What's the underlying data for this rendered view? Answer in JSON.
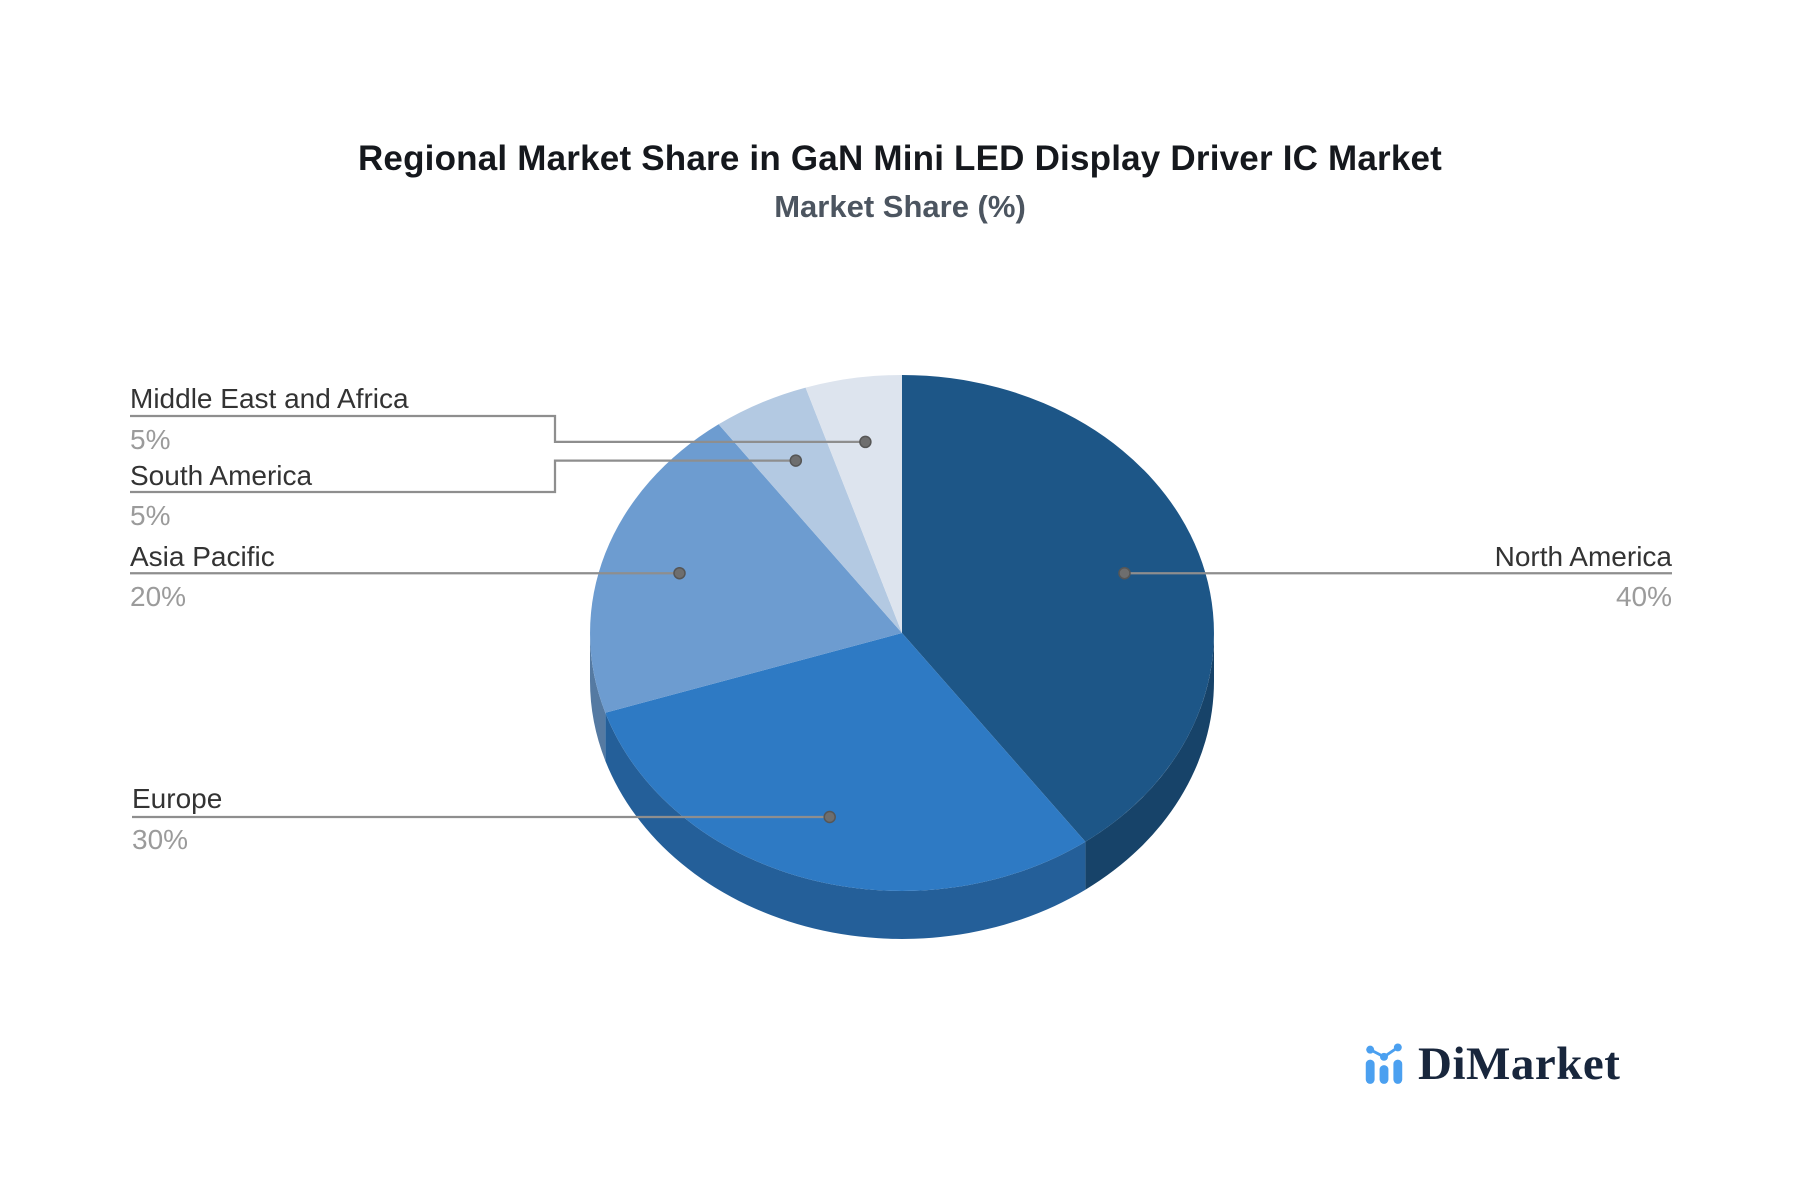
{
  "chart_data": {
    "type": "pie",
    "title": "Regional Market Share in GaN Mini LED Display Driver IC Market",
    "subtitle": "Market Share (%)",
    "unit": "%",
    "effect_3d": true,
    "start_angle_deg": 0,
    "direction": "clockwise",
    "legend_position": "none",
    "label_style": "callout",
    "slices": [
      {
        "label": "North America",
        "value": 40,
        "display": "40%",
        "color": "#1d5687"
      },
      {
        "label": "Europe",
        "value": 30,
        "display": "30%",
        "color": "#2e7ac4"
      },
      {
        "label": "Asia Pacific",
        "value": 20,
        "display": "20%",
        "color": "#6d9cd0"
      },
      {
        "label": "South America",
        "value": 5,
        "display": "5%",
        "color": "#b3c9e2"
      },
      {
        "label": "Middle East and Africa",
        "value": 5,
        "display": "5%",
        "color": "#dde4ee"
      }
    ]
  },
  "branding": {
    "logo_text": "DiMarket"
  },
  "colors": {
    "background": "#ffffff",
    "leader_line": "#8e8e8e",
    "dot": "#6e6e6e",
    "label_text": "#333333",
    "value_text": "#9b9b9b",
    "title": "#15181d",
    "subtitle": "#4c5560",
    "logo_text": "#18263c",
    "logo_icon": "#4ba0f0"
  }
}
